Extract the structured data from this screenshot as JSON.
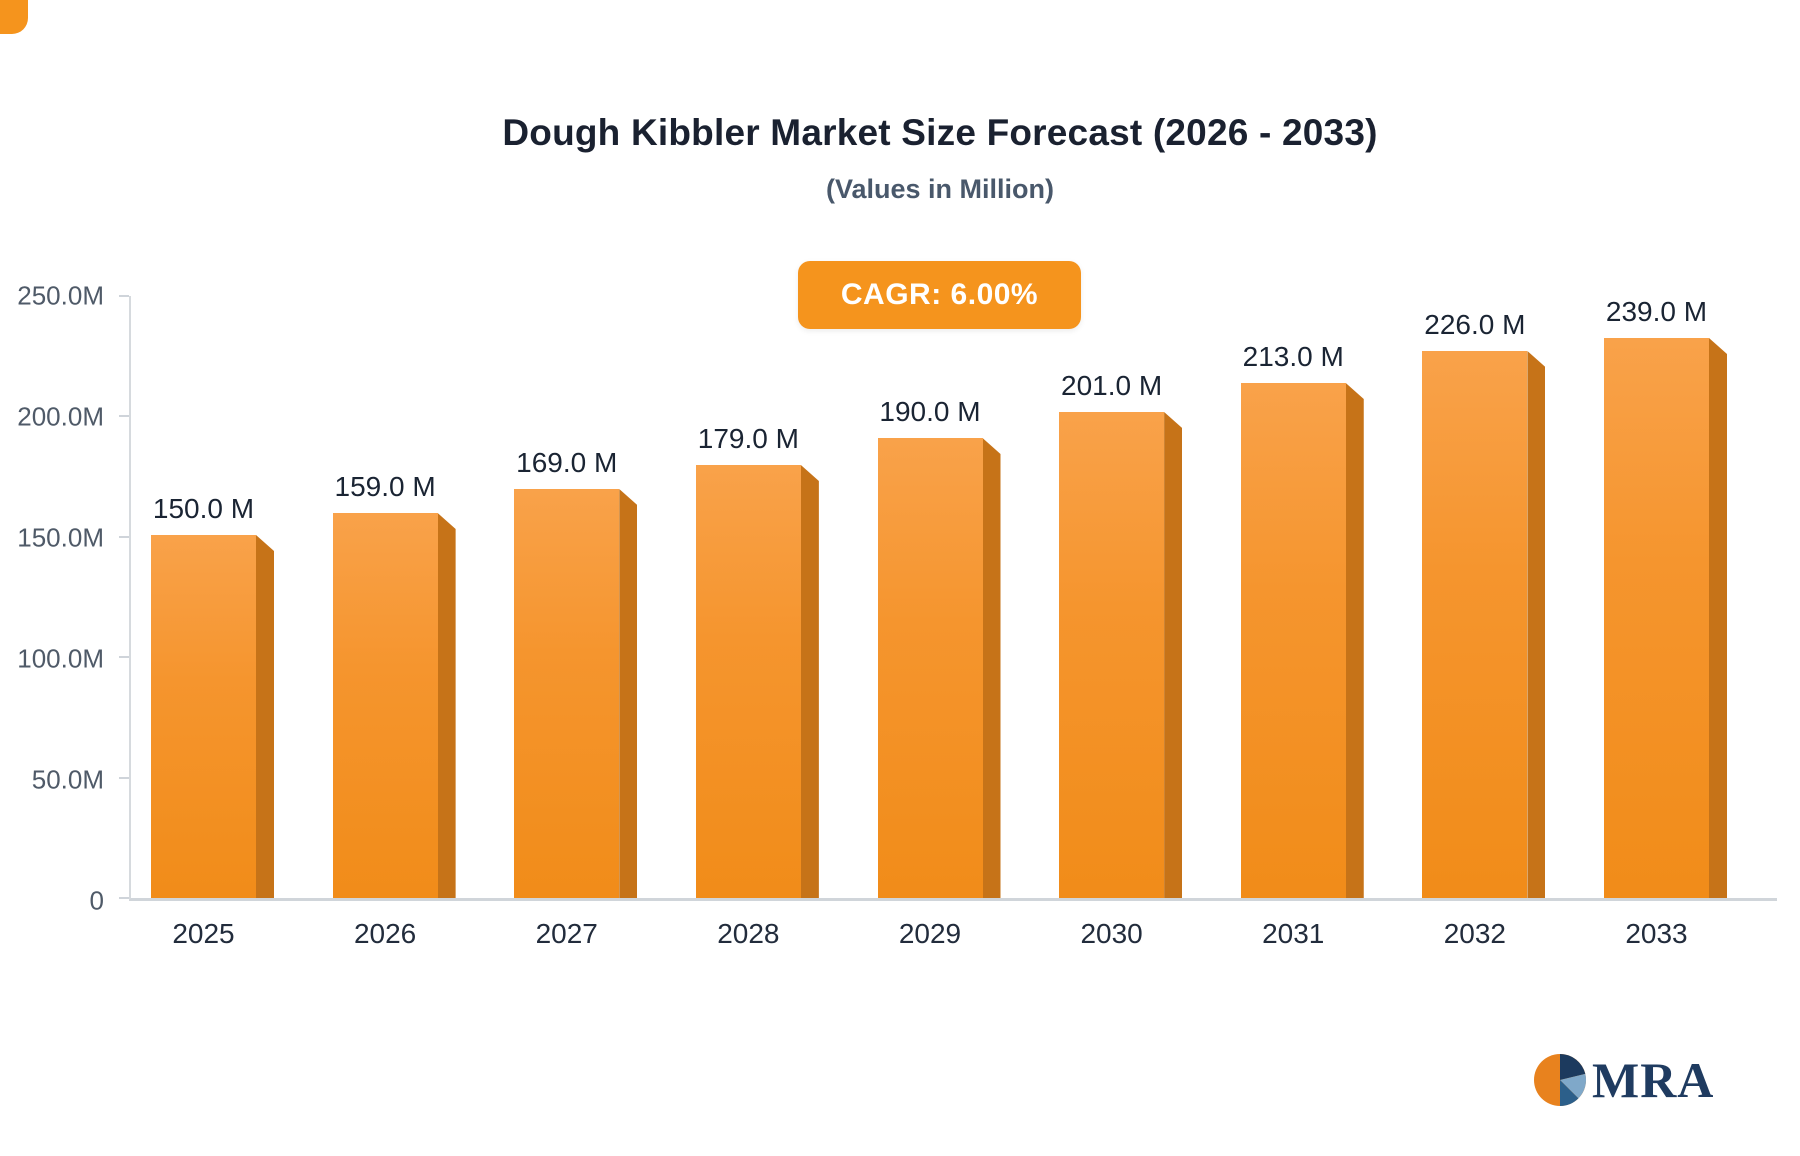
{
  "page": {
    "background": "#ffffff"
  },
  "logo": {
    "text": "MRA"
  },
  "chart_data": {
    "type": "bar",
    "title": "Dough Kibbler Market Size Forecast (2026 - 2033)",
    "subtitle": "(Values in Million)",
    "badge_label": "CAGR: 6.00%",
    "categories": [
      "2025",
      "2026",
      "2027",
      "2028",
      "2029",
      "2030",
      "2031",
      "2032",
      "2033"
    ],
    "values": [
      150.0,
      159.0,
      169.0,
      179.0,
      190.0,
      201.0,
      213.0,
      226.0,
      239.0
    ],
    "value_labels": [
      "150.0 M",
      "159.0 M",
      "169.0 M",
      "179.0 M",
      "190.0 M",
      "201.0 M",
      "213.0 M",
      "226.0 M",
      "239.0 M"
    ],
    "y_ticks": [
      "250.0M",
      "200.0M",
      "150.0M",
      "100.0M",
      "50.0M",
      "0"
    ],
    "ylim": [
      0,
      250
    ],
    "xlabel": "",
    "ylabel": "",
    "grid": false,
    "legend": "none",
    "colors": {
      "bar_top": "#F9A24A",
      "bar_bottom": "#F18C19",
      "bar_side": "#C67318",
      "badge_bg": "#F5941D",
      "title_text": "#1a2130",
      "subtitle_text": "#49586b",
      "axis_line": "#d6dade",
      "logo_navy": "#1F3B60",
      "logo_orange": "#E8821E"
    }
  }
}
